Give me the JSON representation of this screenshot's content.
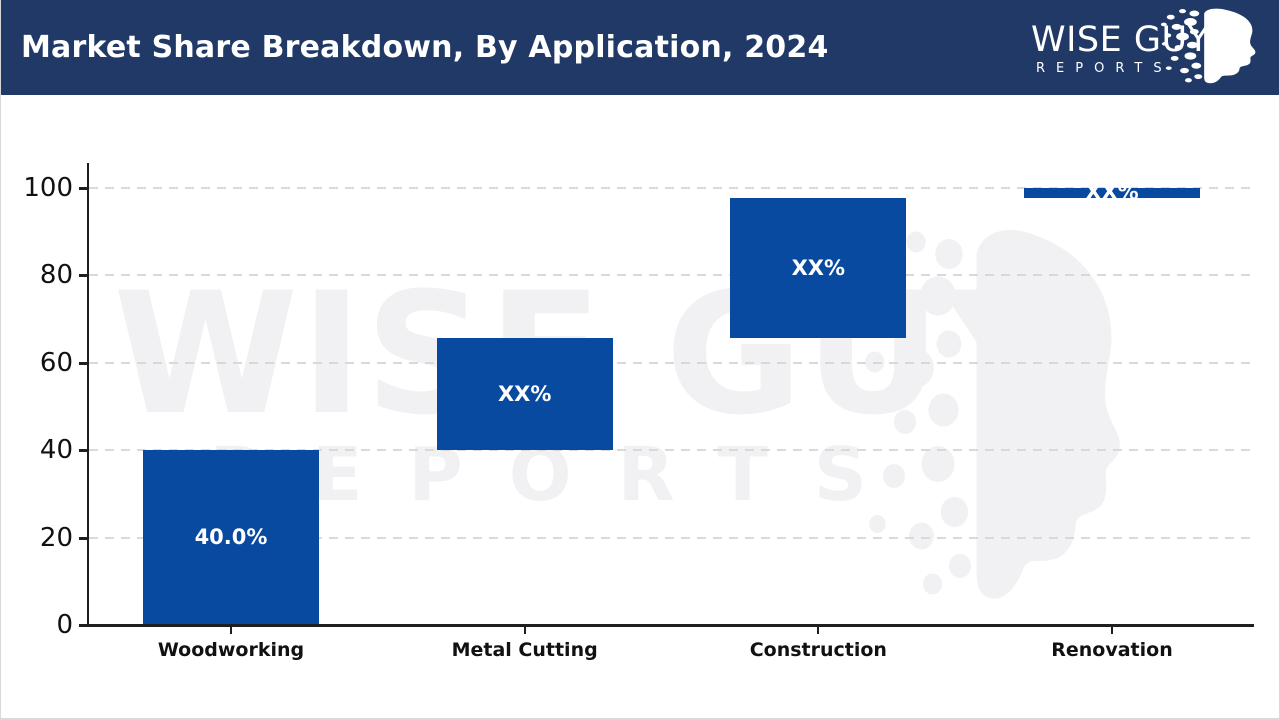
{
  "header": {
    "title": "Market Share Breakdown, By Application, 2024",
    "background_color": "#203966",
    "logo": {
      "name": "WISE GUY",
      "subname": "REPORTS"
    }
  },
  "watermark": {
    "line1": "WISE GUY",
    "line2": "REPORTS"
  },
  "chart_data": {
    "type": "bar",
    "subtype": "waterfall",
    "title": "Market Share Breakdown, By Application, 2024",
    "unit": "%",
    "categories": [
      "Woodworking",
      "Metal Cutting",
      "Construction",
      "Renovation"
    ],
    "segments": [
      {
        "category": "Woodworking",
        "start": 0,
        "end": 40,
        "label": "40.0%"
      },
      {
        "category": "Metal Cutting",
        "start": 40,
        "end": 65.5,
        "label": "XX%"
      },
      {
        "category": "Construction",
        "start": 65.5,
        "end": 97.5,
        "label": "XX%"
      },
      {
        "category": "Renovation",
        "start": 97.5,
        "end": 100,
        "label": "XX%"
      }
    ],
    "y_ticks": [
      0,
      20,
      40,
      60,
      80,
      100
    ],
    "ylim": [
      0,
      105.5
    ],
    "xlabel": "",
    "ylabel": "",
    "grid": "horizontal-dashed",
    "legend": "none",
    "colors": {
      "bar": "#084a9f",
      "bar_label": "#ffffff",
      "axis": "#1f1f1f",
      "grid": "#d9d9d9",
      "watermark": "#f1f1f3"
    }
  }
}
